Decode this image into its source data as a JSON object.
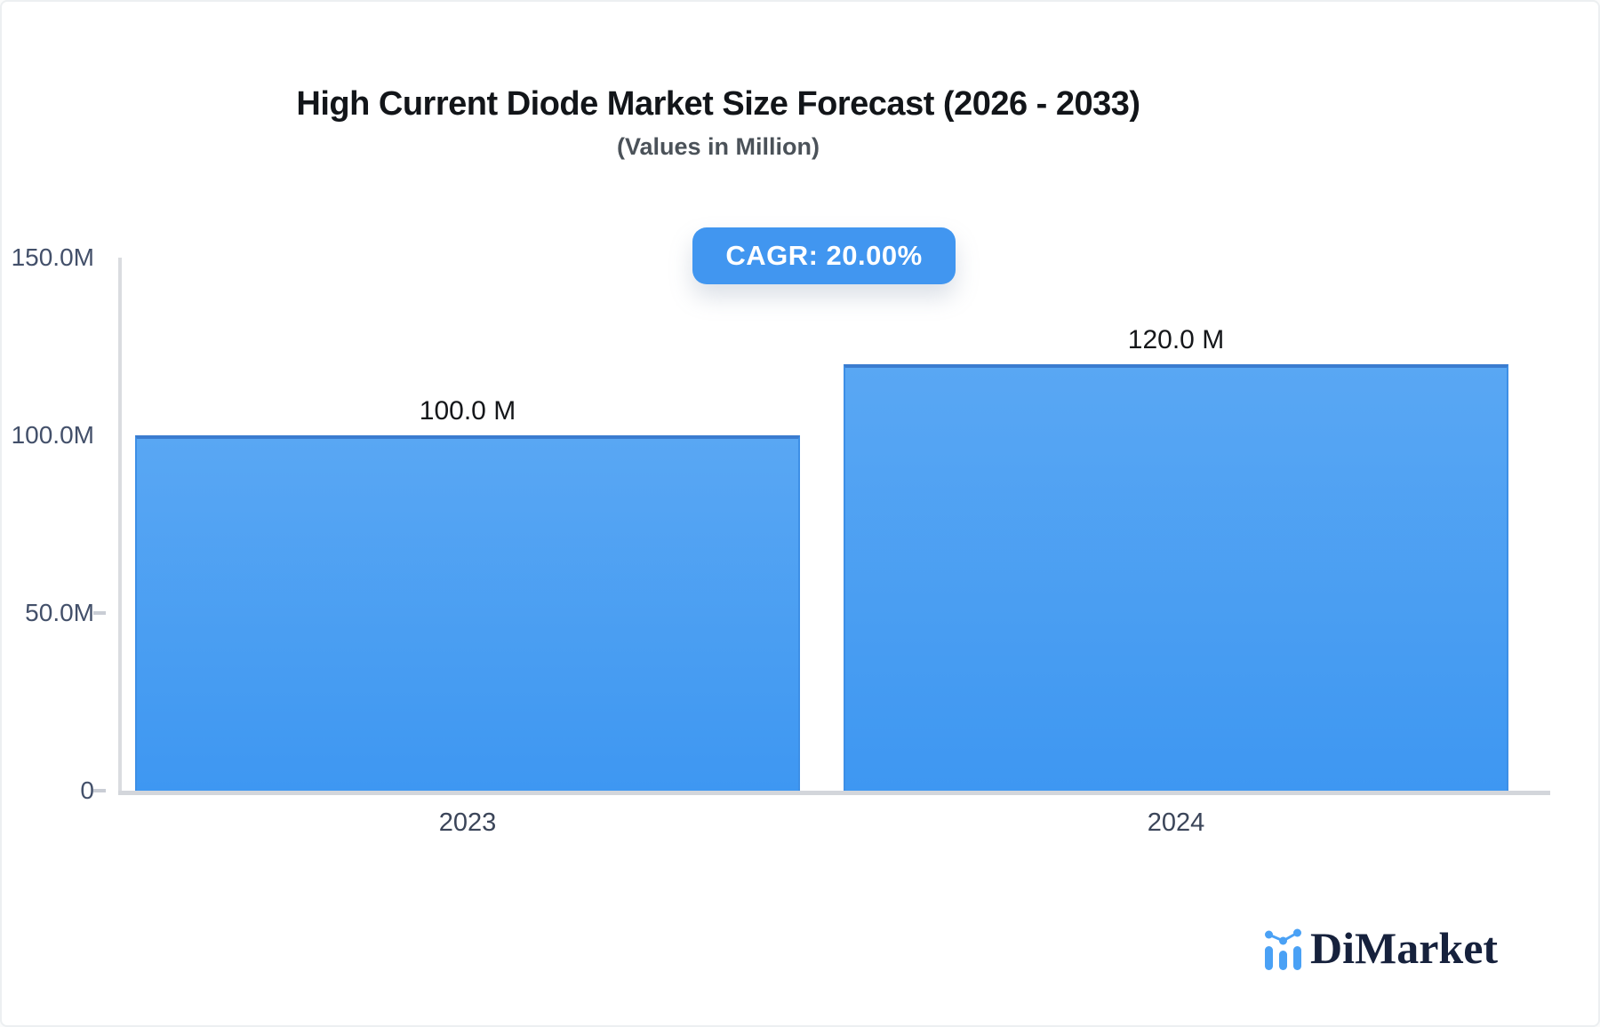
{
  "header": {
    "title": "High Current Diode Market Size Forecast (2026 - 2033)",
    "subtitle": "(Values in Million)"
  },
  "badge": {
    "label": "CAGR: 20.00%",
    "color": "#4196f0"
  },
  "chart_data": {
    "type": "bar",
    "categories": [
      "2023",
      "2024"
    ],
    "values": [
      100,
      120
    ],
    "value_labels": [
      "100.0 M",
      "120.0 M"
    ],
    "title": "High Current Diode Market Size Forecast (2026 - 2033)",
    "subtitle": "(Values in Million)",
    "cagr_annotation": "CAGR: 20.00%",
    "xlabel": "",
    "ylabel": "",
    "ylim": [
      0,
      150
    ],
    "ytick_labels": [
      "150.0M",
      "100.0M",
      "50.0M",
      "0"
    ],
    "ytick_values": [
      150,
      100,
      50,
      0
    ],
    "grid": false,
    "legend_position": "none",
    "bar_color_top": "#59a7f3",
    "bar_color_bottom": "#3e97f2",
    "bar_border_color": "#3b7ccf",
    "axis_line_color": "#dadce0",
    "tick_label_color": "#43506a"
  },
  "footer": {
    "brand": "DiMarket",
    "logo_icon": "bar-line-chart-icon",
    "logo_color": "#4aa1f5",
    "brand_text_color": "#16213c"
  }
}
